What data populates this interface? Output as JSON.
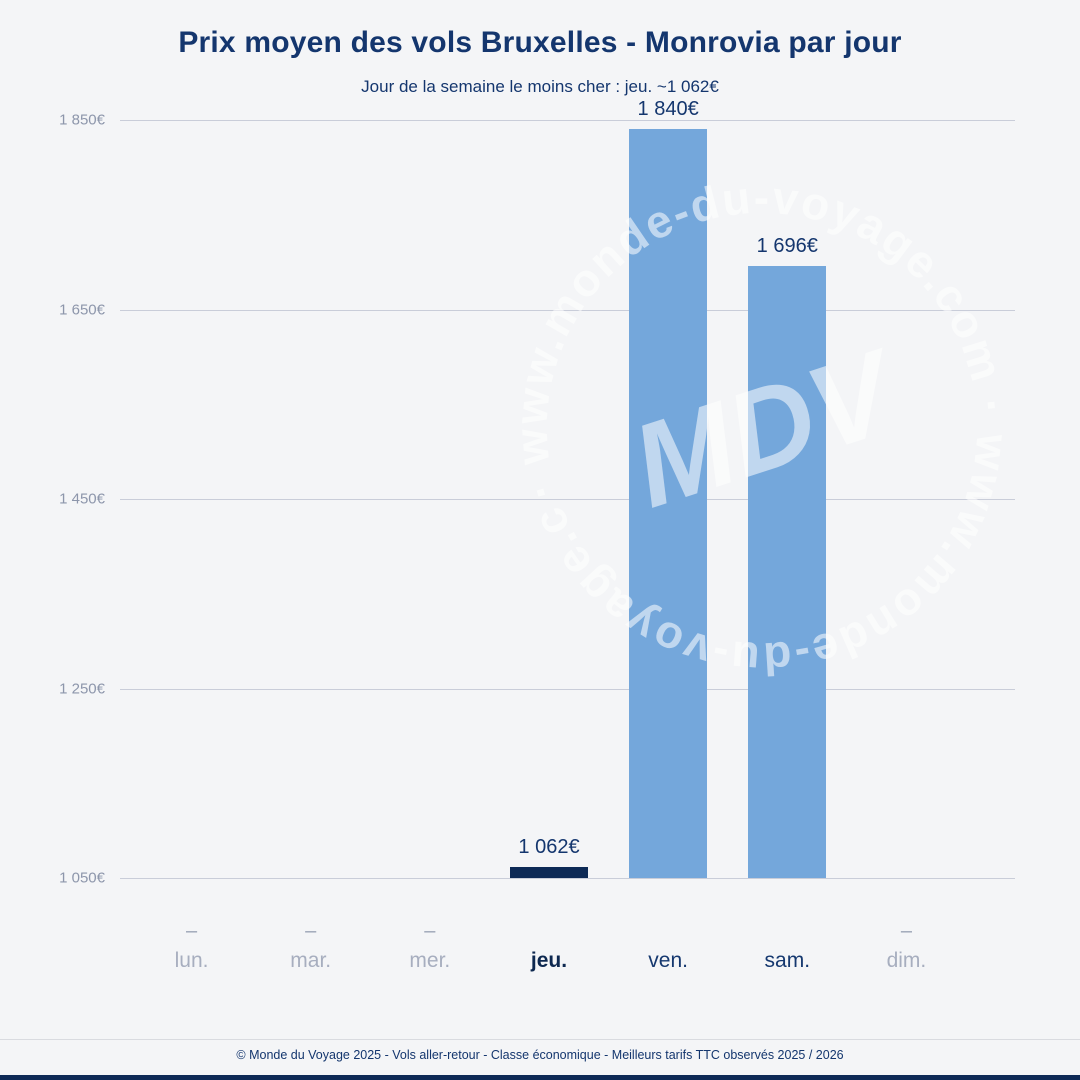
{
  "title": "Prix moyen des vols Bruxelles - Monrovia par jour",
  "subtitle": "Jour de la semaine le moins cher : jeu. ~1 062€",
  "chart_data": {
    "type": "bar",
    "categories": [
      "lun.",
      "mar.",
      "mer.",
      "jeu.",
      "ven.",
      "sam.",
      "dim."
    ],
    "values": [
      null,
      null,
      null,
      1062,
      1840,
      1696,
      null
    ],
    "value_labels": [
      "",
      "",
      "",
      "1 062€",
      "1 840€",
      "1 696€",
      ""
    ],
    "no_data_marker": "–",
    "yticks": {
      "values": [
        1850,
        1650,
        1450,
        1250,
        1050
      ],
      "labels": [
        "1 850€",
        "1 650€",
        "1 450€",
        "1 250€",
        "1 050€"
      ]
    },
    "ylim": [
      1050,
      1850
    ],
    "highlight_index": 3,
    "bar_colors": {
      "highlight": "#0d2a56",
      "normal": "#74a7db"
    },
    "grid": true,
    "legend": "none"
  },
  "watermark": {
    "circle_text": "www.monde-du-voyage.com",
    "center_text": "MDV"
  },
  "footer": "© Monde du Voyage 2025 - Vols aller-retour - Classe économique - Meilleurs tarifs TTC observés 2025 / 2026",
  "colors": {
    "background": "#f4f5f7",
    "title": "#14366e",
    "gridline": "#c9cdd9",
    "y_tick": "#8d96ab",
    "x_muted": "#a7aebf",
    "x_active": "#15386f",
    "x_highlight": "#0d2850",
    "watermark": "#ffffff",
    "bottom_strip": "#0e2a56"
  }
}
